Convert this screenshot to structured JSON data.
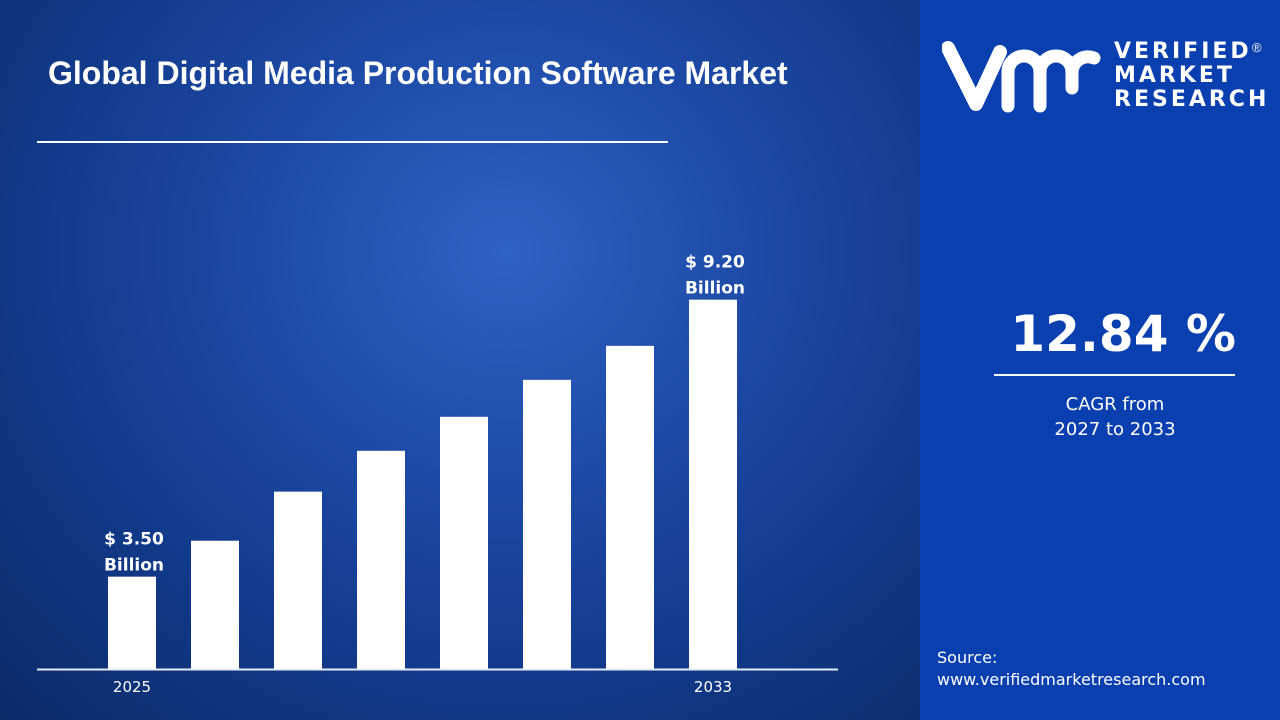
{
  "chart_data": {
    "type": "bar",
    "title": "Global Digital Media Production Software Market",
    "categories": [
      "2025",
      "",
      "",
      "",
      "",
      "",
      "",
      "2033"
    ],
    "values": [
      3.5,
      4.24,
      5.25,
      6.09,
      6.79,
      7.55,
      8.25,
      9.2
    ],
    "data_labels": [
      {
        "index": 0,
        "line1": "$ 3.50",
        "line2": "Billion"
      },
      {
        "index": 7,
        "line1": "$ 9.20",
        "line2": "Billion"
      }
    ],
    "xlabel": "",
    "ylabel": "",
    "ylim": [
      1.6,
      9.2
    ],
    "grid": false,
    "bar_color": "#ffffff"
  },
  "header": {
    "title": "Global Digital Media Production Software Market"
  },
  "brand": {
    "logo_mark": "vmr",
    "line1": "VERIFIED",
    "line2": "MARKET",
    "line3": "RESEARCH",
    "registered": "®"
  },
  "stats": {
    "cagr_value": "12.84 %",
    "cagr_line1": "CAGR from",
    "cagr_line2": "2027 to 2033"
  },
  "source": {
    "label": "Source:",
    "url": "www.verifiedmarketresearch.com"
  },
  "colors": {
    "left_bg": "#1d4aa6",
    "right_bg": "#0a3fb0",
    "text": "#ffffff"
  }
}
